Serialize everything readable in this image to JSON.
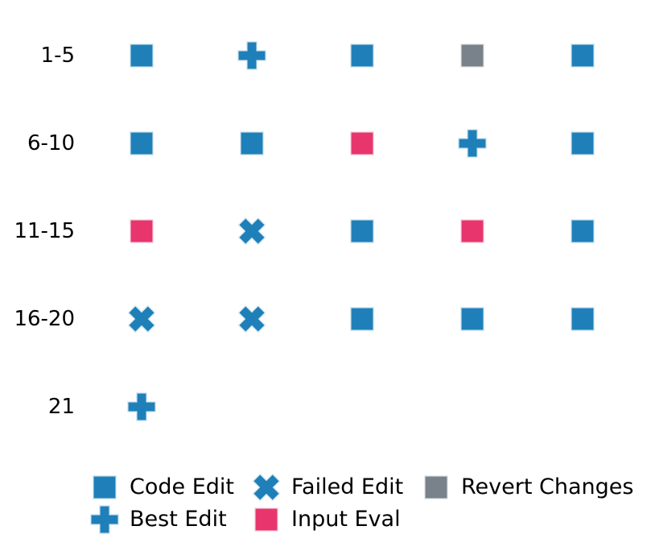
{
  "figure": {
    "background": "#ffffff",
    "title": ""
  },
  "palette": {
    "blue": "#1f80b9",
    "pink": "#e8356d",
    "gray": "#79828a",
    "text": "#000000"
  },
  "chart_data": {
    "type": "scatter",
    "title": "",
    "xlabel": "",
    "ylabel": "",
    "grid": false,
    "axes_visible": false,
    "legend_position": "bottom",
    "legend_columns": 3,
    "x_positions": [
      1,
      2,
      3,
      4,
      5
    ],
    "marker_types": {
      "code_edit": {
        "shape": "square",
        "color": "#1f80b9",
        "label": "Code Edit"
      },
      "failed_edit": {
        "shape": "x",
        "color": "#1f80b9",
        "label": "Failed Edit"
      },
      "revert_changes": {
        "shape": "square",
        "color": "#79828a",
        "label": "Revert Changes"
      },
      "best_edit": {
        "shape": "plus",
        "color": "#1f80b9",
        "label": "Best Edit"
      },
      "input_eval": {
        "shape": "square",
        "color": "#e8356d",
        "label": "Input Eval"
      }
    },
    "rows": [
      {
        "label": "1-5",
        "markers": [
          "code_edit",
          "best_edit",
          "code_edit",
          "revert_changes",
          "code_edit"
        ]
      },
      {
        "label": "6-10",
        "markers": [
          "code_edit",
          "code_edit",
          "input_eval",
          "best_edit",
          "code_edit"
        ]
      },
      {
        "label": "11-15",
        "markers": [
          "input_eval",
          "failed_edit",
          "code_edit",
          "input_eval",
          "code_edit"
        ]
      },
      {
        "label": "16-20",
        "markers": [
          "failed_edit",
          "failed_edit",
          "code_edit",
          "code_edit",
          "code_edit"
        ]
      },
      {
        "label": "21",
        "markers": [
          "best_edit"
        ]
      }
    ],
    "legend": {
      "items": [
        {
          "type": "code_edit",
          "label": "Code Edit",
          "row": 0,
          "col": 0
        },
        {
          "type": "failed_edit",
          "label": "Failed Edit",
          "row": 0,
          "col": 1
        },
        {
          "type": "revert_changes",
          "label": "Revert Changes",
          "row": 0,
          "col": 2
        },
        {
          "type": "best_edit",
          "label": "Best Edit",
          "row": 1,
          "col": 0
        },
        {
          "type": "input_eval",
          "label": "Input Eval",
          "row": 1,
          "col": 1
        }
      ]
    }
  }
}
